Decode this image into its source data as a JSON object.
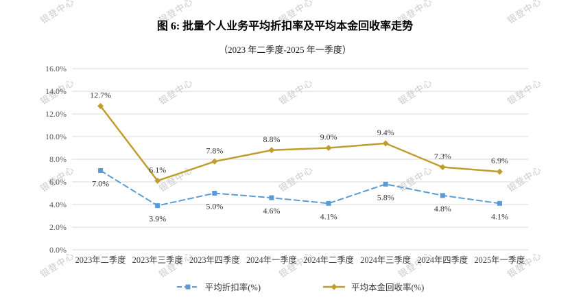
{
  "page": {
    "title": "图 6: 批量个人业务平均折扣率及平均本金回收率走势",
    "subtitle": "（2023 年二季度-2025 年一季度）",
    "watermark_text": "银登中心"
  },
  "chart_data": {
    "type": "line",
    "title": "图 6: 批量个人业务平均折扣率及平均本金回收率走势",
    "subtitle": "（2023 年二季度-2025 年一季度）",
    "categories": [
      "2023年二季度",
      "2023年三季度",
      "2023年四季度",
      "2024年一季度",
      "2024年二季度",
      "2024年三季度",
      "2024年四季度",
      "2025年一季度"
    ],
    "series": [
      {
        "name": "平均折扣率(%)",
        "values": [
          7.0,
          3.9,
          5.0,
          4.6,
          4.1,
          5.8,
          4.8,
          4.1
        ],
        "color": "#5B9BD5",
        "line_style": "dashed",
        "marker": "square",
        "label_position": "below"
      },
      {
        "name": "平均本金回收率(%)",
        "values": [
          12.7,
          6.1,
          7.8,
          8.8,
          9.0,
          9.4,
          7.3,
          6.9
        ],
        "color": "#BF9D2F",
        "line_style": "solid",
        "marker": "diamond",
        "label_position": "above"
      }
    ],
    "y_axis": {
      "min": 0,
      "max": 16,
      "step": 2,
      "tick_suffix": "%",
      "tick_decimals": 1
    },
    "data_label_decimals": 1,
    "data_label_suffix": "%",
    "grid": "horizontal",
    "legend_position": "bottom",
    "colors": {
      "gridline": "#D9D9D9",
      "tick_text": "#595959",
      "category_text": "#404040",
      "data_label_text": "#333333"
    }
  }
}
